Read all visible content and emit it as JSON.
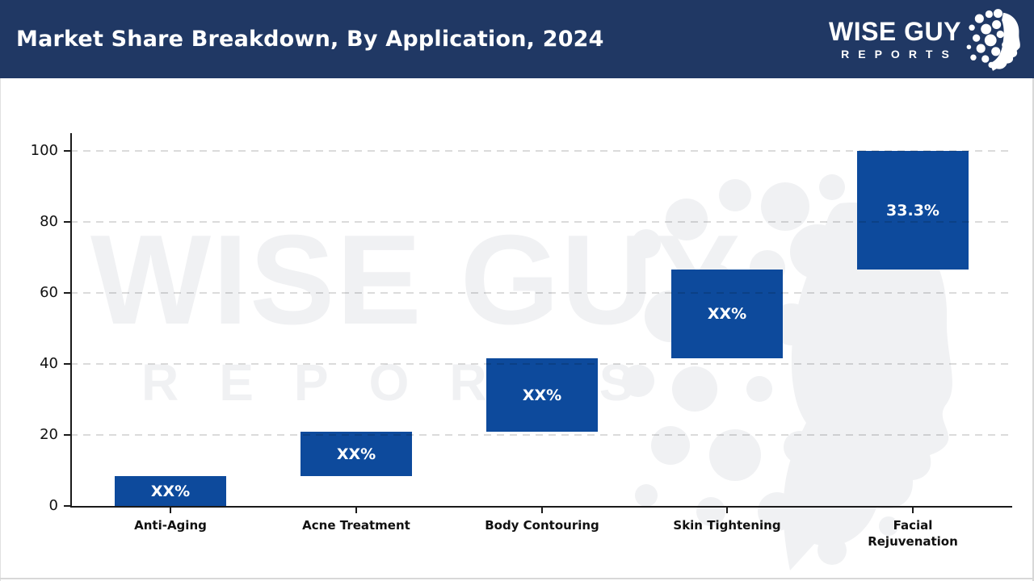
{
  "header": {
    "title": "Market Share Breakdown, By Application, 2024",
    "bg_color": "#203864",
    "logo": {
      "line1": "WISE GUY",
      "line2": "REPORTS",
      "face_icon": "dotted-face-profile-icon"
    }
  },
  "watermark": {
    "line1": "WISE GUY",
    "line2": "REPORTS",
    "color": "#f0f1f3"
  },
  "chart_data": {
    "type": "bar",
    "subtype": "waterfall",
    "title": "Market Share Breakdown, By Application, 2024",
    "categories": [
      "Anti-Aging",
      "Acne Treatment",
      "Body Contouring",
      "Skin Tightening",
      "Facial Rejuvenation"
    ],
    "segments": [
      {
        "category": "Anti-Aging",
        "label": "XX%",
        "start": 0,
        "end": 8.3
      },
      {
        "category": "Acne Treatment",
        "label": "XX%",
        "start": 8.3,
        "end": 20.8
      },
      {
        "category": "Body Contouring",
        "label": "XX%",
        "start": 20.8,
        "end": 41.6
      },
      {
        "category": "Skin Tightening",
        "label": "XX%",
        "start": 41.6,
        "end": 66.6
      },
      {
        "category": "Facial Rejuvenation",
        "label": "33.3%",
        "start": 66.6,
        "end": 100
      }
    ],
    "values_displayed": [
      "XX%",
      "XX%",
      "XX%",
      "XX%",
      "33.3%"
    ],
    "xlabel": "",
    "ylabel": "",
    "yticks": [
      0,
      20,
      40,
      60,
      80,
      100
    ],
    "ylim": [
      0,
      105
    ],
    "grid": "horizontal-dashed",
    "legend": "none",
    "bar_color": "#0d4a9c",
    "bar_label_color": "#ffffff"
  },
  "colors": {
    "header_bg": "#203864",
    "bar": "#0d4a9c",
    "axis": "#1a1a1a",
    "gridline": "rgba(0,0,0,0.14)",
    "watermark": "#f0f1f3",
    "edge_line": "#d8d8d8"
  }
}
